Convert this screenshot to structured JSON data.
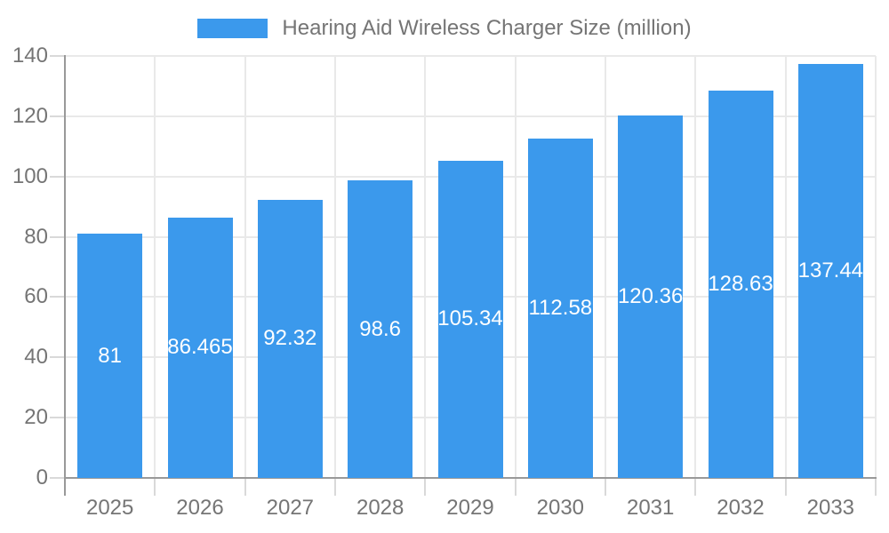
{
  "legend": {
    "label": "Hearing Aid Wireless Charger Size (million)"
  },
  "chart_data": {
    "type": "bar",
    "title": "Hearing Aid Wireless Charger Size (million)",
    "categories": [
      "2025",
      "2026",
      "2027",
      "2028",
      "2029",
      "2030",
      "2031",
      "2032",
      "2033"
    ],
    "values": [
      81,
      86.465,
      92.32,
      98.6,
      105.34,
      112.58,
      120.36,
      128.63,
      137.44
    ],
    "value_labels": [
      "81",
      "86.465",
      "92.32",
      "98.6",
      "105.34",
      "112.58",
      "120.36",
      "128.63",
      "137.44"
    ],
    "xlabel": "",
    "ylabel": "",
    "ylim": [
      0,
      140
    ],
    "ytick_step": 20,
    "yticks": [
      0,
      20,
      40,
      60,
      80,
      100,
      120,
      140
    ],
    "grid": true,
    "legend_position": "top",
    "value_label_position": "inside-middle",
    "colors": {
      "bar": "#3B99EC",
      "axis_line": "#999999",
      "gridline": "#E9E9E9",
      "tick": "#D9D9D9",
      "axis_label": "#757575",
      "legend_text": "#757575",
      "value_label": "#FFFFFF",
      "background": "#FFFFFF"
    }
  }
}
